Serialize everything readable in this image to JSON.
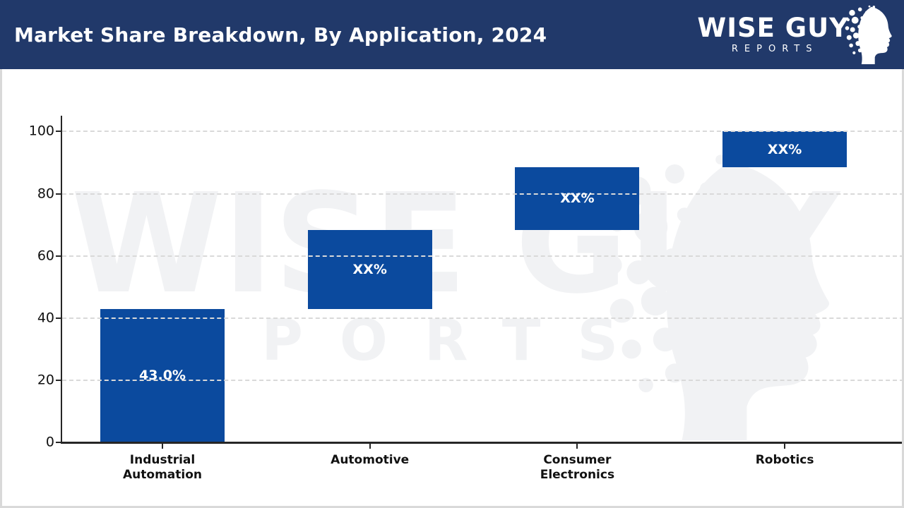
{
  "header": {
    "title": "Market Share Breakdown, By Application, 2024",
    "logo": {
      "wordmark": "WISE GUY",
      "subtitle": "REPORTS"
    }
  },
  "watermark": {
    "line1": "WISE GUY",
    "line2": "REPORTS"
  },
  "colors": {
    "header_bg": "#21396a",
    "bar_blue": "#0b4a9e",
    "gridline": "#d9d9d9",
    "axis": "#262626",
    "watermark": "#f1f2f4"
  },
  "chart_data": {
    "type": "bar",
    "subtype": "waterfall-segmented",
    "title": "Market Share Breakdown, By Application, 2024",
    "categories": [
      "Industrial\nAutomation",
      "Automotive",
      "Consumer\nElectronics",
      "Robotics"
    ],
    "segments": [
      {
        "category": "Industrial Automation",
        "start": 0,
        "end": 43.0,
        "value_label": "43.0%"
      },
      {
        "category": "Automotive",
        "start": 43.0,
        "end": 68.4,
        "value_label": "XX%"
      },
      {
        "category": "Consumer Electronics",
        "start": 68.4,
        "end": 88.5,
        "value_label": "XX%"
      },
      {
        "category": "Robotics",
        "start": 88.5,
        "end": 100.0,
        "value_label": "XX%"
      }
    ],
    "xlabel": "",
    "ylabel": "",
    "ylim": [
      0,
      100
    ],
    "yticks": [
      0,
      20,
      40,
      60,
      80,
      100
    ],
    "grid": {
      "axis": "y",
      "style": "dashed",
      "drawn_over_bars": true
    },
    "bar_color": "#0b4a9e",
    "legend": "none"
  }
}
